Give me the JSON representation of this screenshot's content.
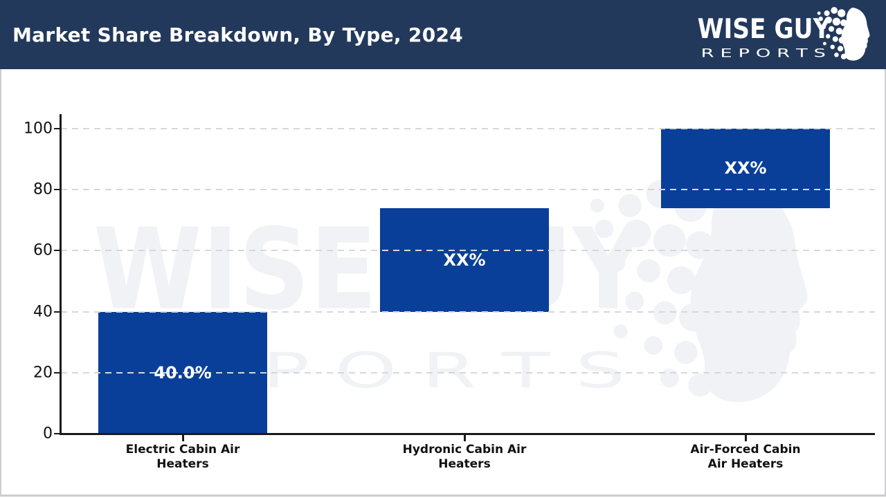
{
  "header": {
    "title": "Market Share Breakdown, By Type, 2024",
    "brand": {
      "line1": "WISE GUY",
      "line2": "R E P O R T S"
    }
  },
  "colors": {
    "header_bg": "#22395c",
    "bar": "#093f99",
    "bar_label": "#ffffff",
    "grid": "#d7d7d9",
    "axis": "#1a1a1a",
    "watermark": "#eef0f4"
  },
  "chart_data": {
    "type": "bar",
    "subtype": "floating-waterfall",
    "title": "Market Share Breakdown, By Type, 2024",
    "categories": [
      "Electric Cabin Air Heaters",
      "Hydronic Cabin Air Heaters",
      "Air-Forced Cabin Air Heaters"
    ],
    "categories_lines": [
      [
        "Electric Cabin Air",
        "Heaters"
      ],
      [
        "Hydronic Cabin Air",
        "Heaters"
      ],
      [
        "Air-Forced Cabin",
        "Air Heaters"
      ]
    ],
    "segments": [
      {
        "label": "40.0%",
        "start": 0,
        "end": 40
      },
      {
        "label": "XX%",
        "start": 40,
        "end": 74
      },
      {
        "label": "XX%",
        "start": 74,
        "end": 100
      }
    ],
    "yticks": [
      0,
      20,
      40,
      60,
      80,
      100
    ],
    "ylim": [
      0,
      105
    ],
    "xlabel": "",
    "ylabel": "",
    "grid": "dashed-horizontal",
    "legend": "none"
  }
}
